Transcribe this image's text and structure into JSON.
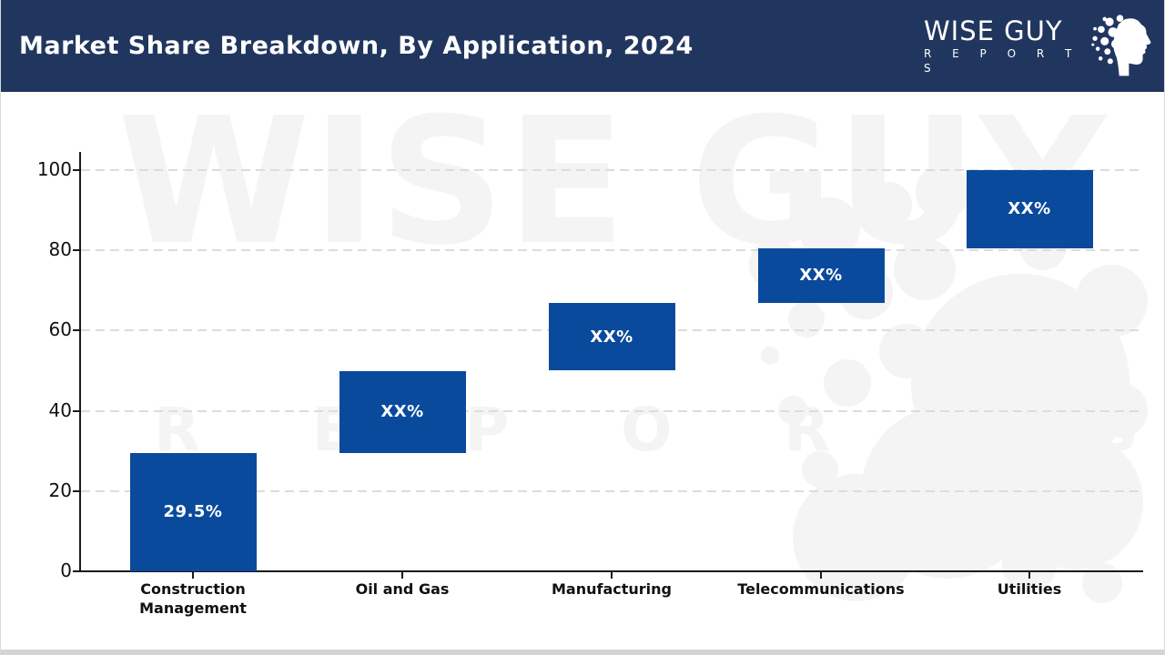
{
  "header": {
    "title": "Market Share Breakdown, By Application, 2024",
    "logo": {
      "line1": "WISE GUY",
      "line2": "R E P O R T S"
    }
  },
  "watermark": {
    "line1": "WISE GUY",
    "line2": "R E P O R T S"
  },
  "chart_data": {
    "type": "bar",
    "subtype": "waterfall",
    "title": "Market Share Breakdown, By Application, 2024",
    "categories": [
      "Construction\nManagement",
      "Oil and Gas",
      "Manufacturing",
      "Telecommunications",
      "Utilities"
    ],
    "segments": [
      {
        "category": "Construction Management",
        "start": 0,
        "end": 29.5,
        "value": 29.5,
        "label": "29.5%"
      },
      {
        "category": "Oil and Gas",
        "start": 29.5,
        "end": 50,
        "value": 20.5,
        "label": "XX%"
      },
      {
        "category": "Manufacturing",
        "start": 50,
        "end": 67,
        "value": 17,
        "label": "XX%"
      },
      {
        "category": "Telecommunications",
        "start": 67,
        "end": 80.5,
        "value": 13.5,
        "label": "XX%"
      },
      {
        "category": "Utilities",
        "start": 80.5,
        "end": 100,
        "value": 19.5,
        "label": "XX%"
      }
    ],
    "xlabel": "",
    "ylabel": "",
    "ylim": [
      0,
      105
    ],
    "yticks": [
      0,
      20,
      40,
      60,
      80,
      100
    ],
    "grid": true,
    "grid_style": "dashed",
    "legend": "none",
    "bar_color": "#0a4a9d",
    "value_label_color": "#ffffff",
    "header_color": "#21365f"
  }
}
